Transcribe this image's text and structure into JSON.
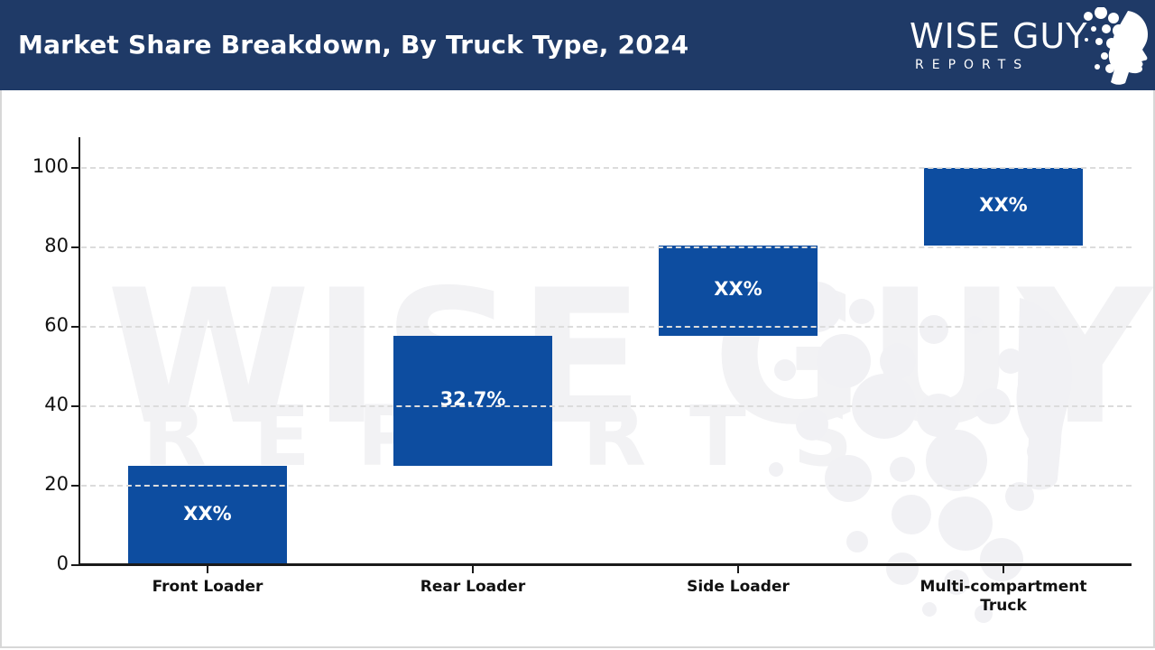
{
  "header": {
    "logo": {
      "wordmark": "WISE GUY",
      "subtitle": "REPORTS"
    }
  },
  "watermark": {
    "line1": "WISE GUY",
    "line2": "REPORTS"
  },
  "colors": {
    "header_bg": "#1f3a67",
    "bar": "#0d4da0",
    "bar_label_text": "#ffffff",
    "gridline": "#dcdcdc",
    "axis": "#1a1a1a",
    "watermark": "#f2f2f4"
  },
  "chart_data": {
    "type": "bar",
    "subtype": "floating-waterfall",
    "title": "Market Share Breakdown, By Truck Type, 2024",
    "categories": [
      "Front Loader",
      "Rear Loader",
      "Side Loader",
      "Multi-compartment Truck"
    ],
    "segments": [
      {
        "start": 0,
        "end": 25.0,
        "label": "XX%"
      },
      {
        "start": 25.0,
        "end": 57.7,
        "label": "32.7%"
      },
      {
        "start": 57.7,
        "end": 80.5,
        "label": "XX%"
      },
      {
        "start": 80.5,
        "end": 100.0,
        "label": "XX%"
      }
    ],
    "xlabel": "",
    "ylabel": "",
    "ylim": [
      0,
      100
    ],
    "yticks": [
      0,
      20,
      40,
      60,
      80,
      100
    ],
    "grid": "horizontal-dashed",
    "legend": "none"
  }
}
